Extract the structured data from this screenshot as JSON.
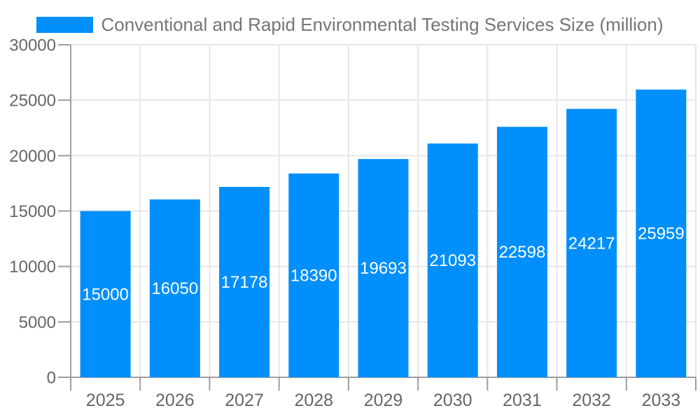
{
  "chart_data": {
    "type": "bar",
    "title": "Conventional and Rapid Environmental Testing Services Size (million)",
    "categories": [
      "2025",
      "2026",
      "2027",
      "2028",
      "2029",
      "2030",
      "2031",
      "2032",
      "2033"
    ],
    "values": [
      15000,
      16050,
      17178,
      18390,
      19693,
      21093,
      22598,
      24217,
      25959
    ],
    "bar_labels": [
      "15000",
      "16050",
      "17178",
      "18390",
      "19693",
      "21093",
      "22598",
      "24217",
      "25959"
    ],
    "xlabel": "",
    "ylabel": "",
    "ylim": [
      0,
      30000
    ],
    "yticks": [
      0,
      5000,
      10000,
      15000,
      20000,
      25000,
      30000
    ],
    "ytick_labels": [
      "0",
      "5000",
      "10000",
      "15000",
      "20000",
      "25000",
      "30000"
    ],
    "grid": true,
    "legend_position": "top"
  },
  "colors": {
    "bar": "#008ffb",
    "bar_label_text": "#ffffff",
    "grid_line": "#e6e6e6",
    "axis_line": "#9e9e9e",
    "tick_text": "#666666",
    "title_text": "#757575",
    "background": "#ffffff"
  }
}
